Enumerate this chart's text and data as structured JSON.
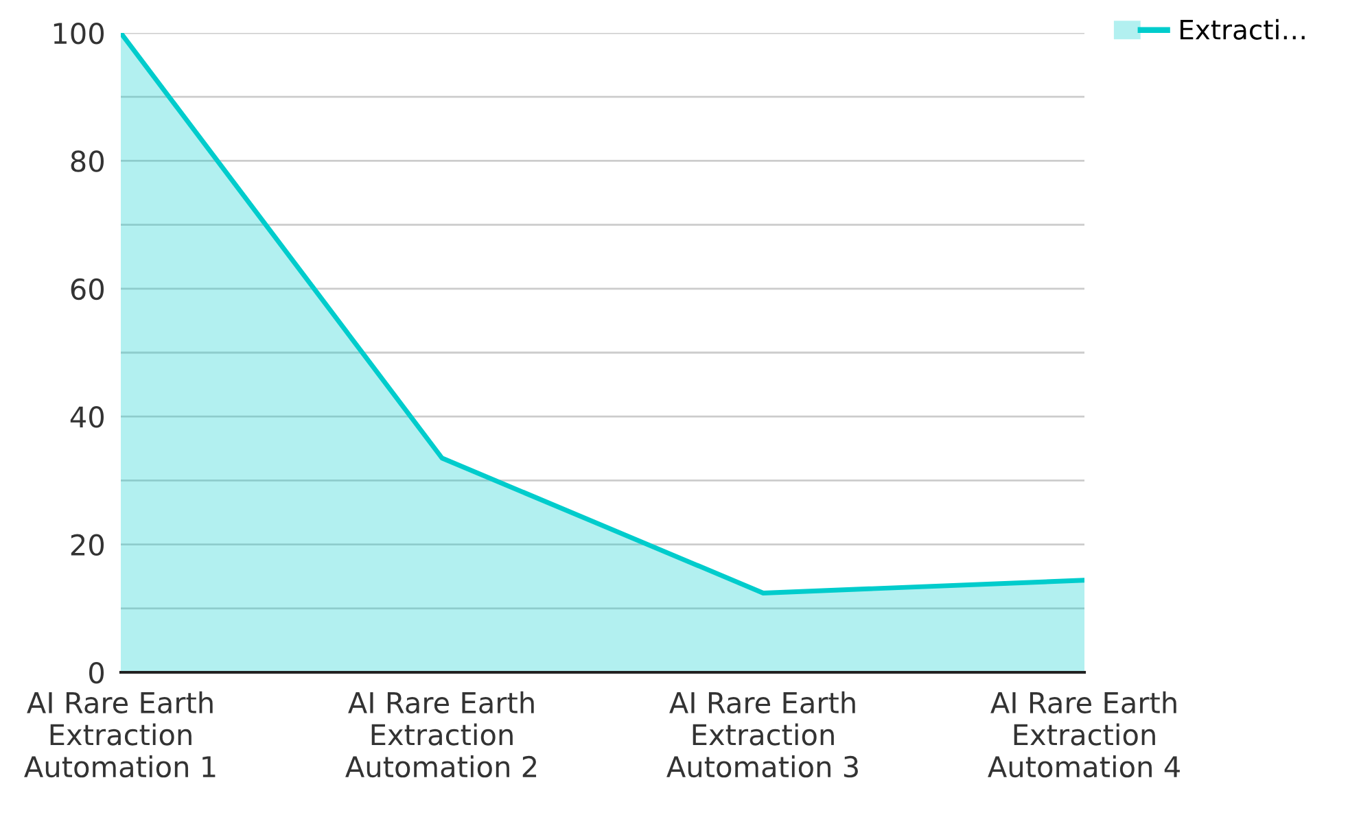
{
  "chart_data": {
    "type": "area",
    "categories": [
      "AI Rare Earth\nExtraction\nAutomation 1",
      "AI Rare Earth\nExtraction\nAutomation 2",
      "AI Rare Earth\nExtraction\nAutomation 3",
      "AI Rare Earth\nExtraction\nAutomation 4"
    ],
    "series": [
      {
        "name": "Extracti…",
        "color": "#00cccc",
        "values": [
          100,
          33.5,
          12.4,
          14.4
        ]
      }
    ],
    "ylim": [
      0,
      100
    ],
    "yticks": [
      0,
      {
        "value": 10,
        "label": null
      },
      20,
      {
        "value": 30,
        "label": null
      },
      40,
      {
        "value": 50,
        "label": null
      },
      60,
      {
        "value": 70,
        "label": null
      },
      80,
      {
        "value": 90,
        "label": null
      },
      100
    ],
    "grid": "y",
    "legend": "top right"
  }
}
